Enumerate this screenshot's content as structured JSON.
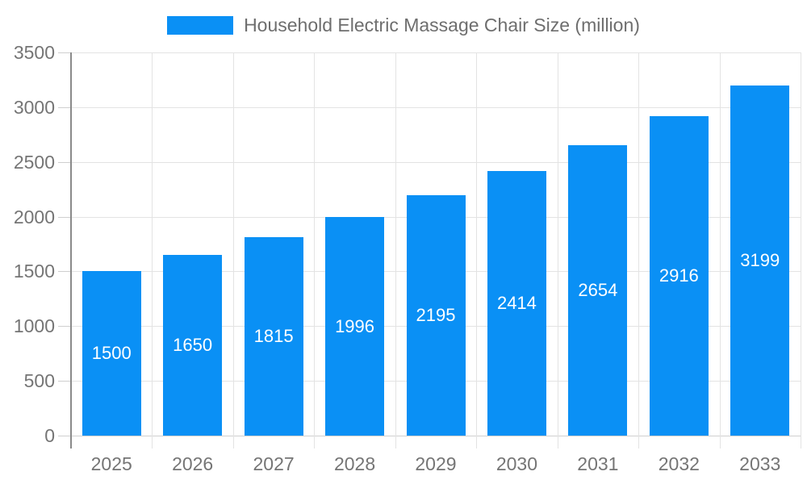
{
  "chart_data": {
    "type": "bar",
    "title": "Household Electric Massage Chair Size (million)",
    "series_name": "Household Electric Massage Chair Size (million)",
    "categories": [
      "2025",
      "2026",
      "2027",
      "2028",
      "2029",
      "2030",
      "2031",
      "2032",
      "2033"
    ],
    "values": [
      1500,
      1650,
      1815,
      1996,
      2195,
      2414,
      2654,
      2916,
      3199
    ],
    "bar_value_labels": [
      "1500",
      "1650",
      "1815",
      "1996",
      "2195",
      "2414",
      "2654",
      "2916",
      "3199"
    ],
    "xlabel": "",
    "ylabel": "",
    "ylim": [
      0,
      3500
    ],
    "yticks": [
      0,
      500,
      1000,
      1500,
      2000,
      2500,
      3000,
      3500
    ],
    "grid": true,
    "legend_position": "top",
    "colors": {
      "bar": "#0a90f5",
      "bar_value_label": "#ffffff",
      "axis_text": "#757575",
      "title_text": "#6e6e6e",
      "gridline": "#e3e3e3",
      "zero_line": "#cfcfcf",
      "tick": "#cfcfcf",
      "axis_line": "#8a8a8a",
      "background": "#ffffff"
    }
  }
}
